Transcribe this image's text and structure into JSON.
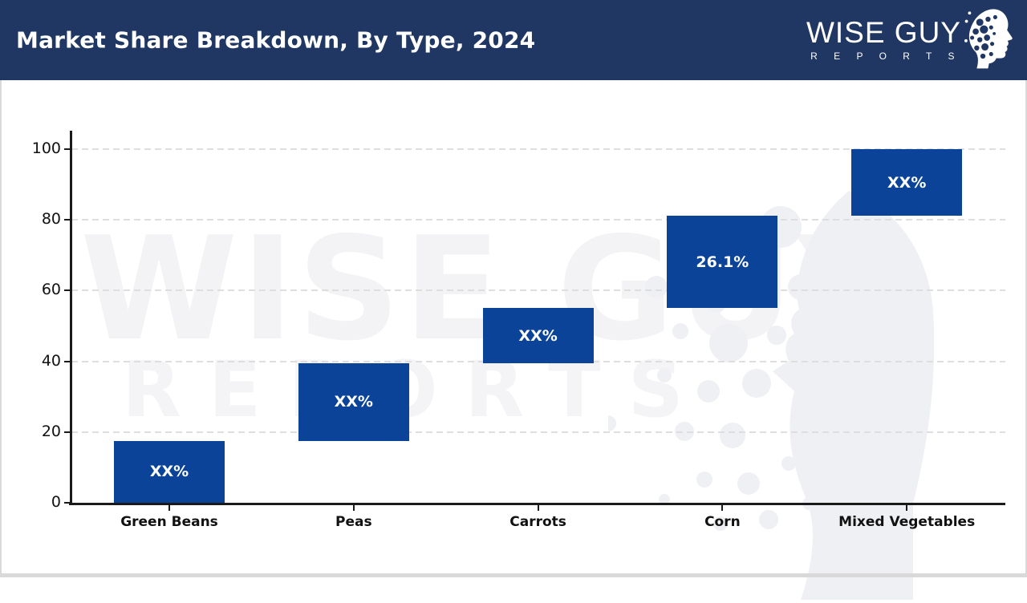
{
  "header": {
    "title": "Market Share Breakdown, By Type, 2024",
    "background_color": "#203764",
    "logo": {
      "line1": "WISE GUY",
      "line2": "R E P O R T S",
      "icon": "face-profile-dots-icon"
    }
  },
  "watermark": {
    "line1": "WISE GUY",
    "line2": "REPORTS",
    "icon": "face-profile-dots-watermark"
  },
  "chart_data": {
    "type": "bar",
    "subtype": "waterfall",
    "title": "Market Share Breakdown, By Type, 2024",
    "xlabel": "",
    "ylabel": "",
    "categories": [
      "Green Beans",
      "Peas",
      "Carrots",
      "Corn",
      "Mixed Vegetables"
    ],
    "values": [
      17.5,
      22.0,
      15.5,
      26.1,
      18.9
    ],
    "segments": [
      {
        "category": "Green Beans",
        "start": 0,
        "end": 17.5,
        "label": "XX%"
      },
      {
        "category": "Peas",
        "start": 17.5,
        "end": 39.5,
        "label": "XX%"
      },
      {
        "category": "Carrots",
        "start": 39.5,
        "end": 55.0,
        "label": "XX%"
      },
      {
        "category": "Corn",
        "start": 55.0,
        "end": 81.1,
        "label": "26.1%"
      },
      {
        "category": "Mixed Vegetables",
        "start": 81.1,
        "end": 100.0,
        "label": "XX%"
      }
    ],
    "yticks": [
      0,
      20,
      40,
      60,
      80,
      100
    ],
    "ylim": [
      0,
      105
    ],
    "grid": "dashed-horizontal",
    "legend": "none",
    "bar_color": "#0b4398",
    "bar_label_color": "#ffffff",
    "axis_color": "#1a1a1a",
    "gridline_color": "#dedede"
  }
}
